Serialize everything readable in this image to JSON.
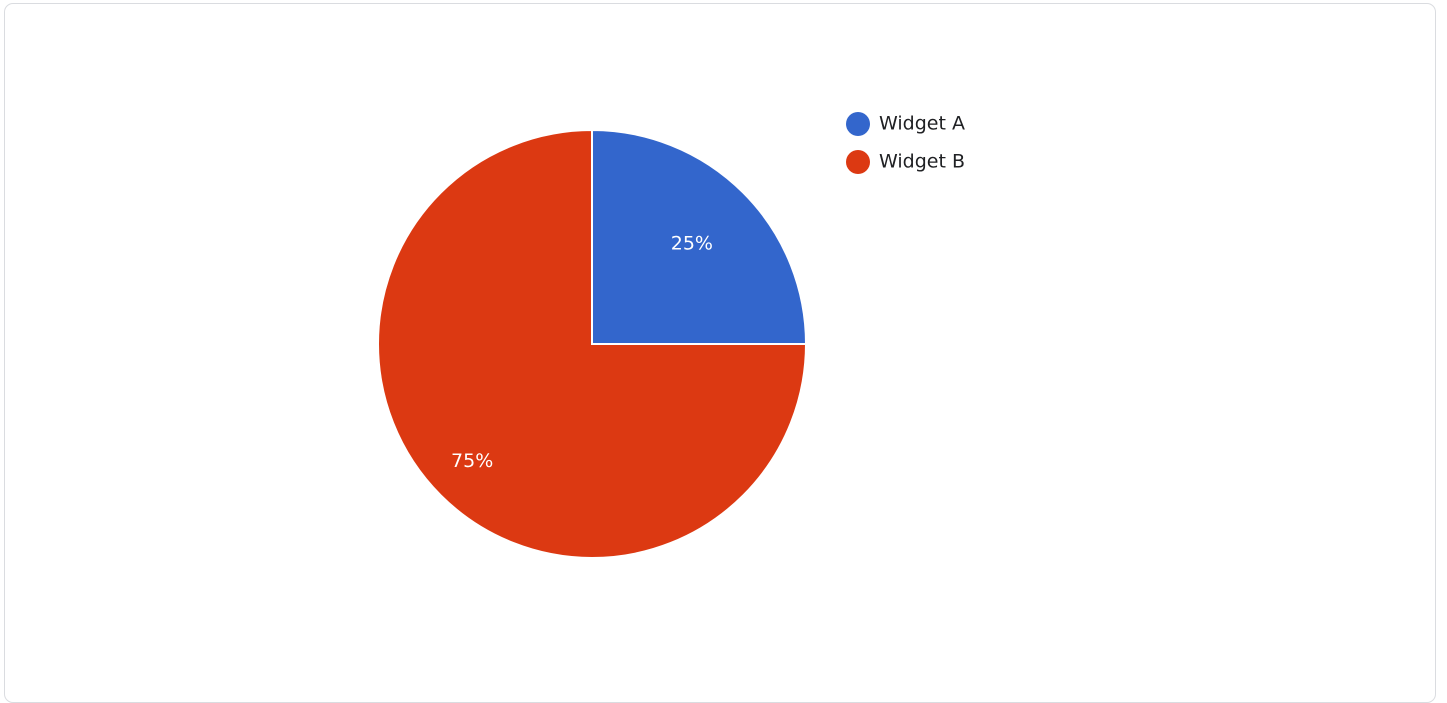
{
  "chart_data": {
    "type": "pie",
    "categories": [
      "Widget A",
      "Widget B"
    ],
    "values": [
      25,
      75
    ],
    "labels": [
      "25%",
      "75%"
    ],
    "colors": [
      "#3366cc",
      "#dc3912"
    ],
    "title": "",
    "legend_position": "right"
  }
}
